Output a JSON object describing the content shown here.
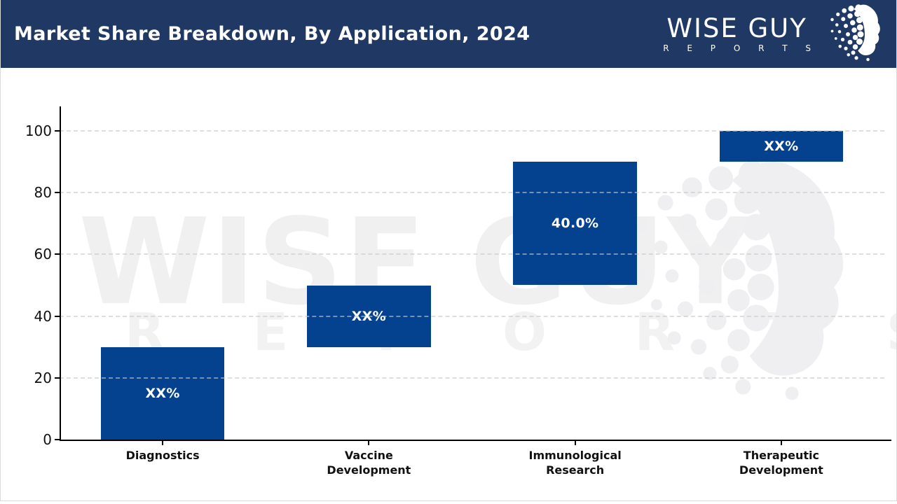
{
  "header": {
    "title": "Market Share Breakdown, By Application, 2024",
    "bg_color": "#1f3864",
    "logo": {
      "line1": "WISE GUY",
      "line2": "R E P O R T S",
      "head_icon": "dotted-face-profile"
    }
  },
  "watermark": {
    "line1": "WISE GUY",
    "line2": "R E P O R T S",
    "head_icon": "dotted-face-profile"
  },
  "chart_data": {
    "type": "bar",
    "subtype": "floating-waterfall",
    "title": "Market Share Breakdown, By Application, 2024",
    "xlabel": "",
    "ylabel": "",
    "ylim": [
      0,
      100
    ],
    "yticks": [
      0,
      20,
      40,
      60,
      80,
      100
    ],
    "grid": "horizontal-dashed",
    "legend": "none",
    "bar_color": "#04418f",
    "categories": [
      "Diagnostics",
      "Vaccine Development",
      "Immunological Research",
      "Therapeutic Development"
    ],
    "segments": [
      {
        "category": "Diagnostics",
        "from": 0,
        "to": 30,
        "label": "XX%"
      },
      {
        "category": "Vaccine Development",
        "from": 30,
        "to": 50,
        "label": "XX%"
      },
      {
        "category": "Immunological Research",
        "from": 50,
        "to": 90,
        "label": "40.0%"
      },
      {
        "category": "Therapeutic Development",
        "from": 90,
        "to": 100,
        "label": "XX%"
      }
    ]
  }
}
